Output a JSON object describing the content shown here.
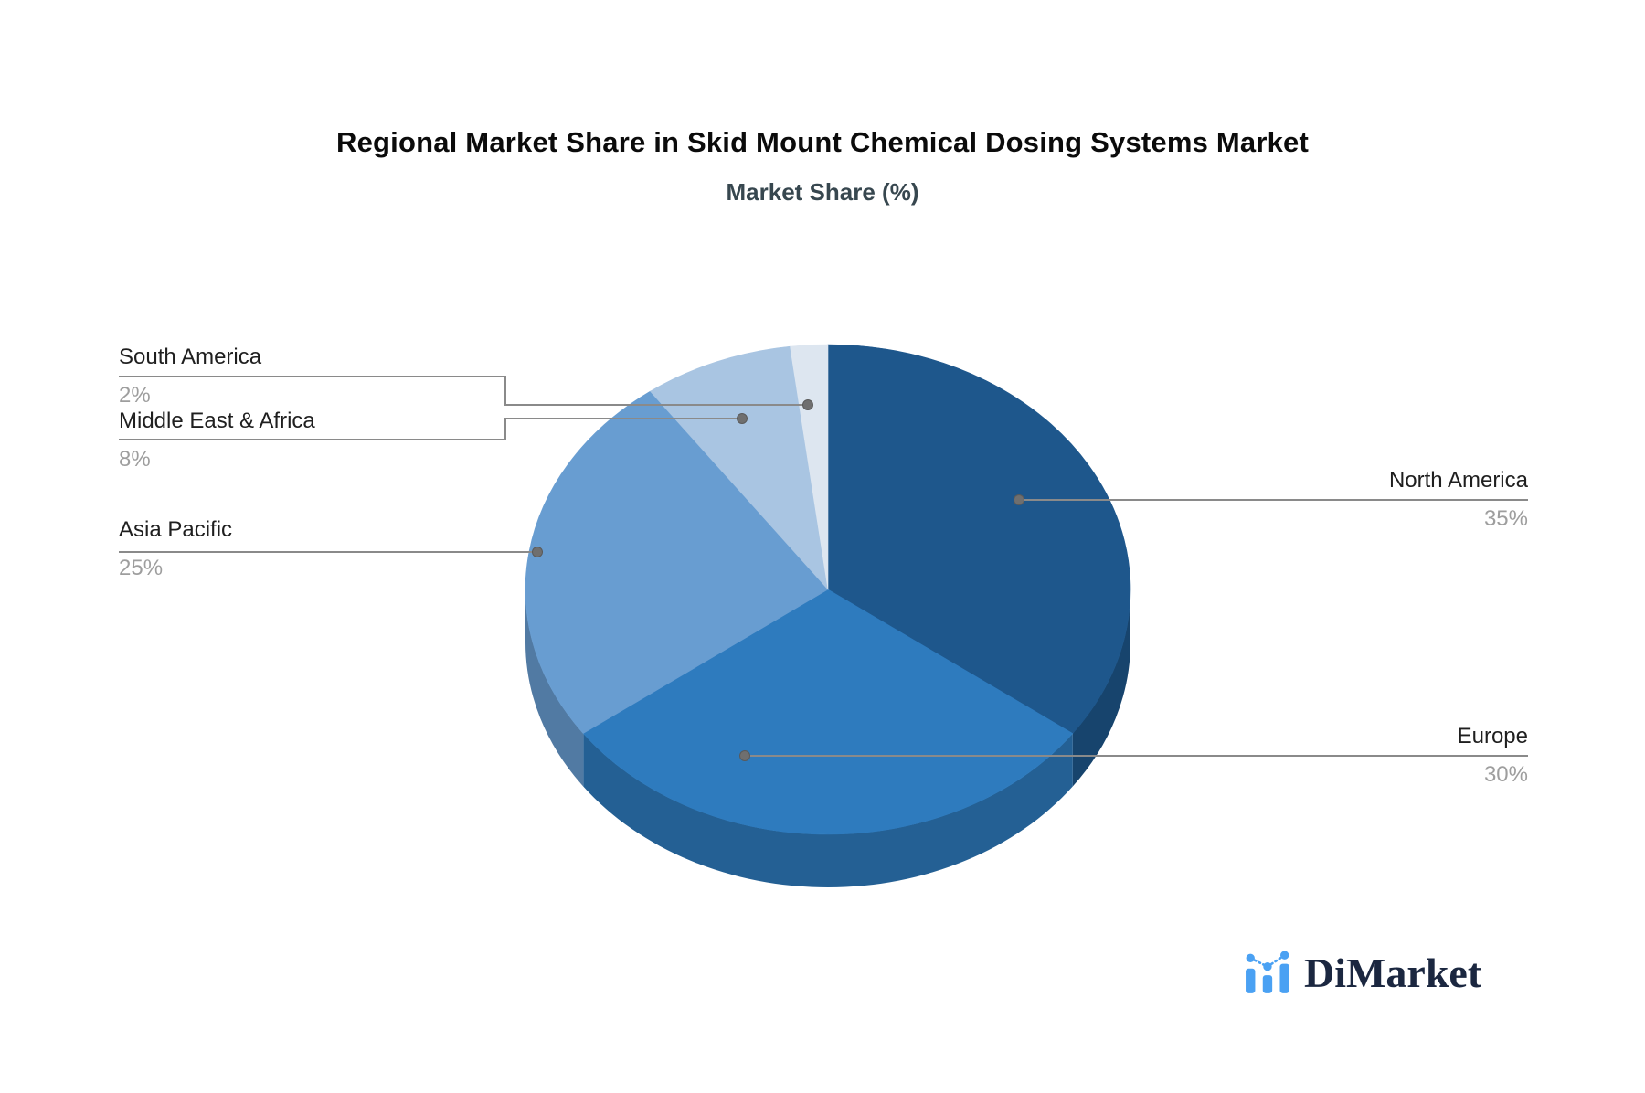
{
  "header": {
    "title": "Regional Market Share in Skid Mount Chemical Dosing Systems Market",
    "subtitle": "Market Share (%)"
  },
  "chart_data": {
    "type": "pie",
    "style": "3d-pie",
    "title": "Regional Market Share in Skid Mount Chemical Dosing Systems Market",
    "subtitle": "Market Share (%)",
    "unit": "%",
    "start_angle_deg": 0,
    "direction": "clockwise",
    "legend_position": "callout-lines",
    "slices": [
      {
        "label": "North America",
        "value": 35,
        "display_value": "35%",
        "color": "#1e578c"
      },
      {
        "label": "Europe",
        "value": 30,
        "display_value": "30%",
        "color": "#2e7bbe"
      },
      {
        "label": "Asia Pacific",
        "value": 25,
        "display_value": "25%",
        "color": "#689dd1"
      },
      {
        "label": "Middle East & Africa",
        "value": 8,
        "display_value": "8%",
        "color": "#a9c5e2"
      },
      {
        "label": "South America",
        "value": 2,
        "display_value": "2%",
        "color": "#dde6f0"
      }
    ]
  },
  "branding": {
    "logo_text": "DiMarket",
    "logo_icon": "bar-line-chart-icon"
  },
  "colors": {
    "background": "#ffffff",
    "title_text": "#0b0b0b",
    "subtitle_text": "#37474f",
    "label_text": "#1f1f1f",
    "value_text": "#9e9e9e",
    "connector_line": "#8a8a8a",
    "connector_dot": "#6f6f6f",
    "logo_icon": "#4aa1f3",
    "logo_text": "#1b2740"
  }
}
